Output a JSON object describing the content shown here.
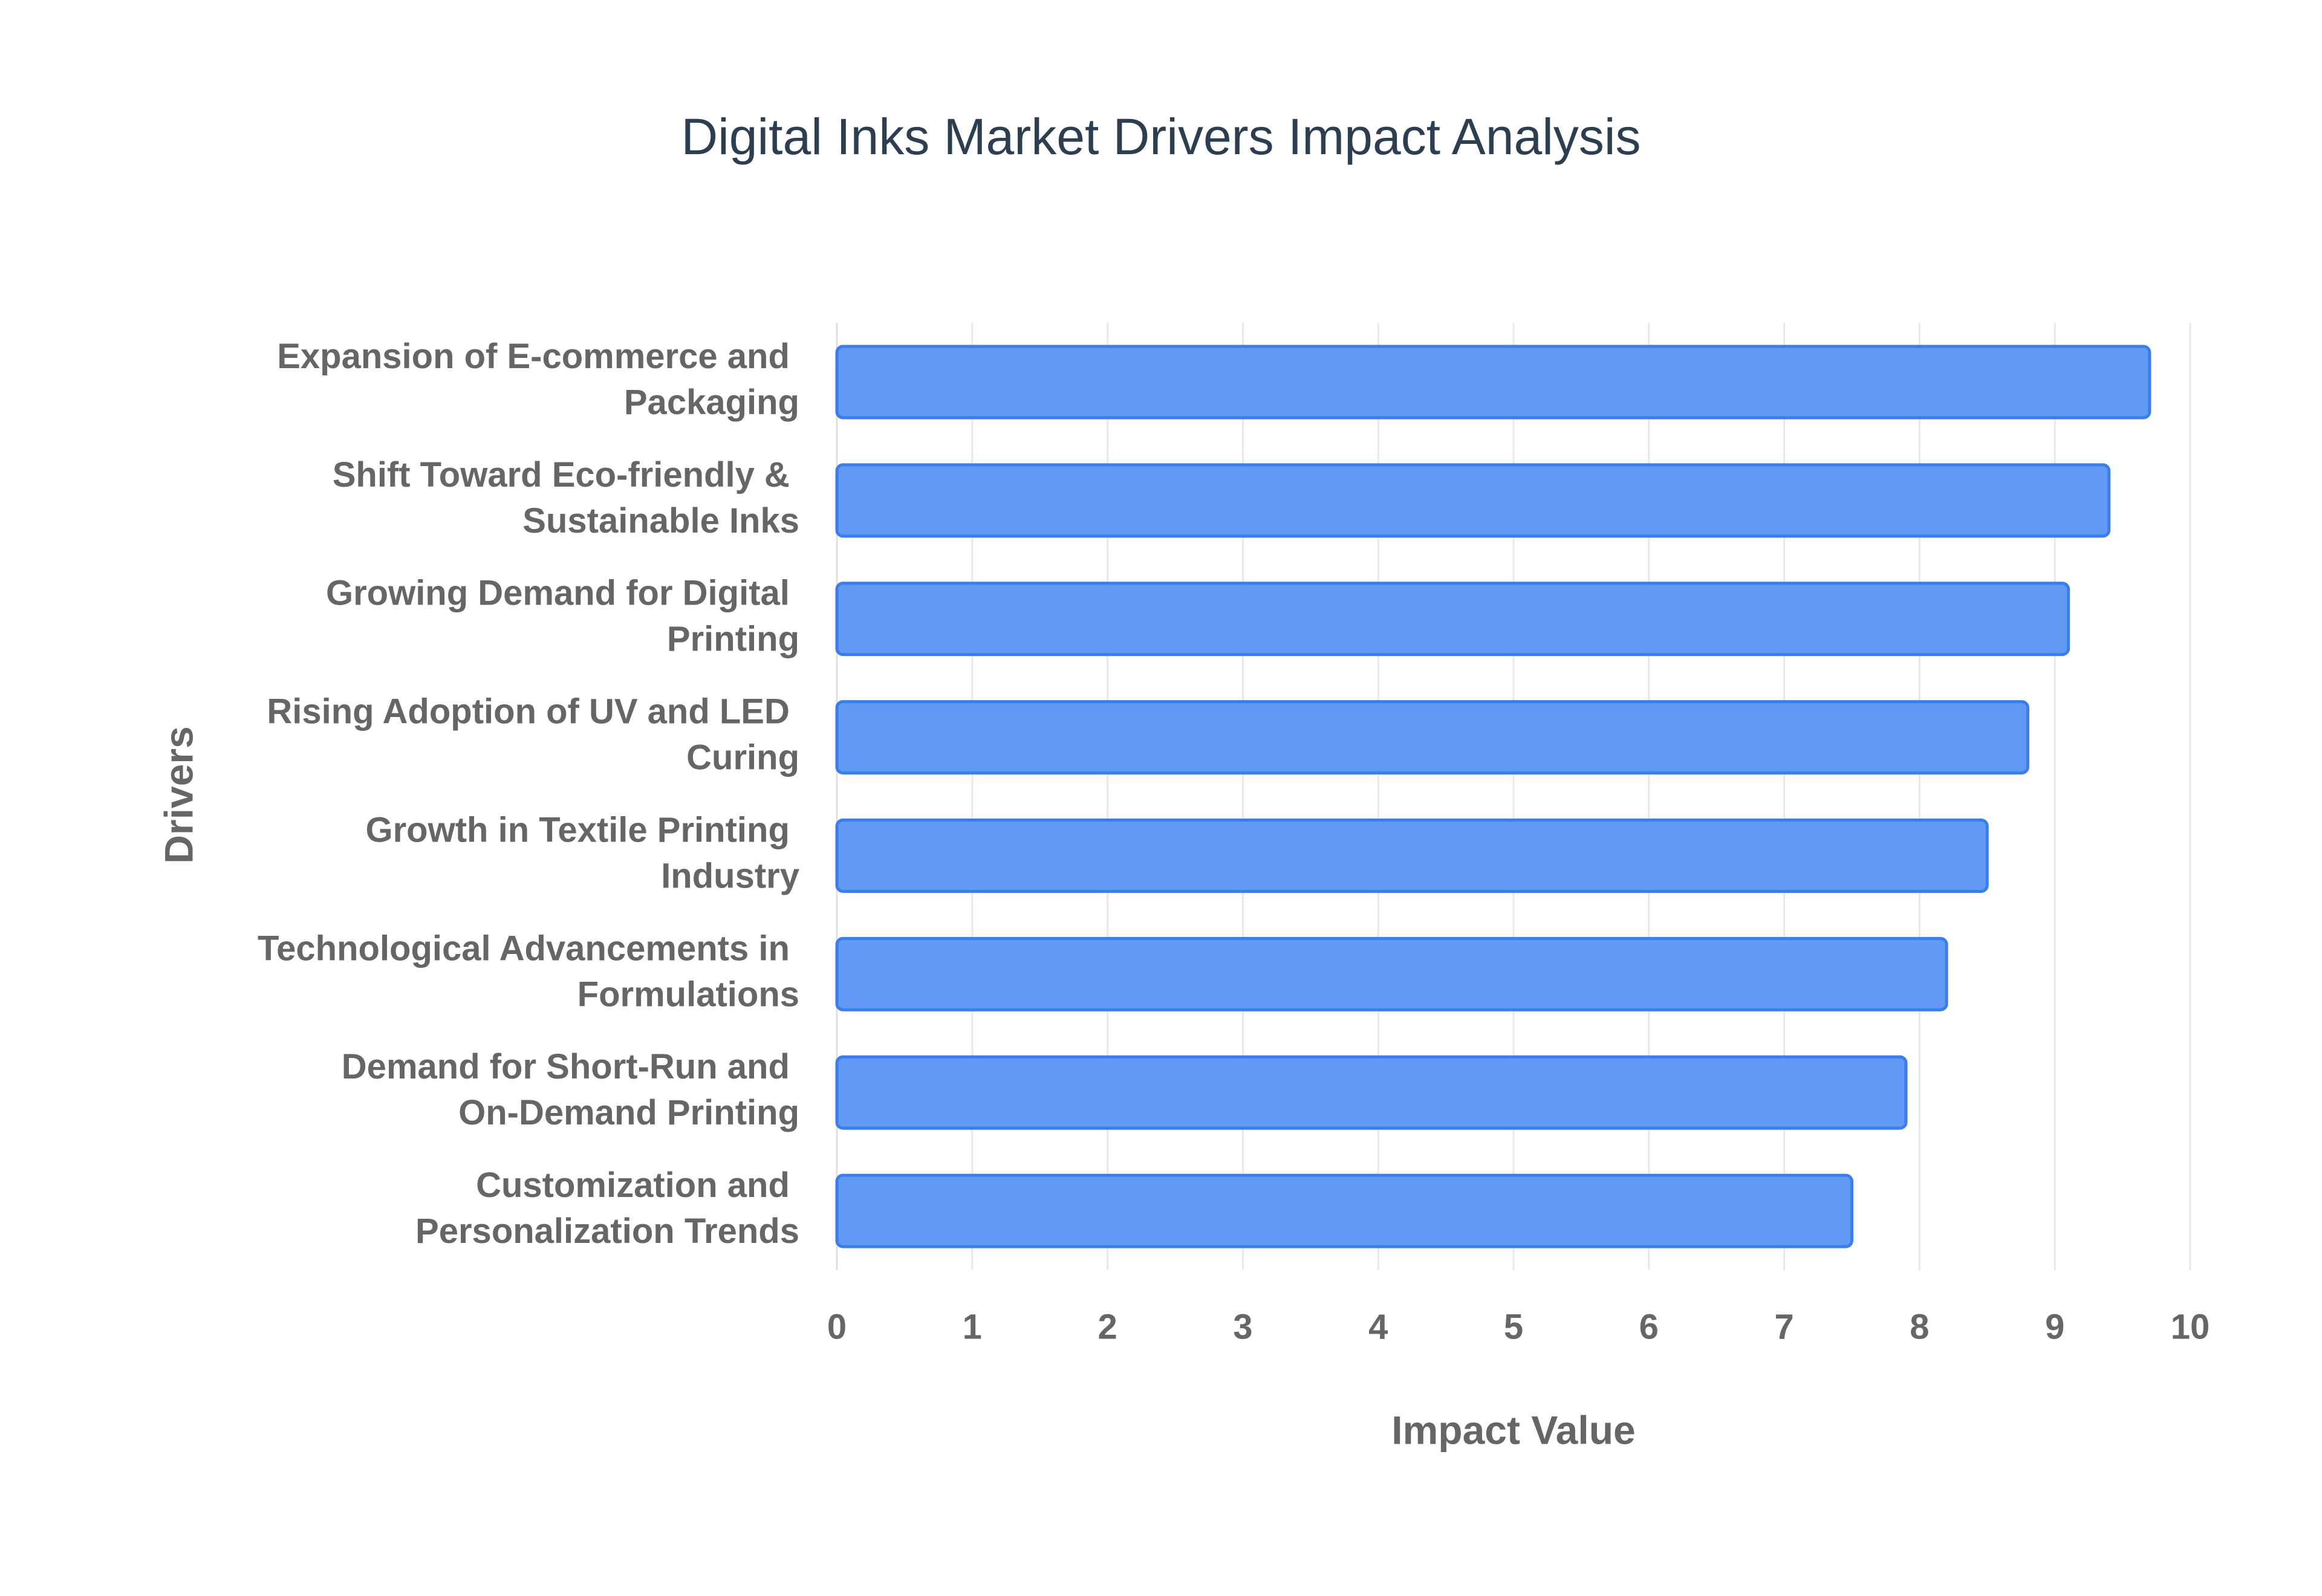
{
  "chart_data": {
    "type": "bar",
    "orientation": "horizontal",
    "title": "Digital Inks Market Drivers Impact Analysis",
    "xlabel": "Impact Value",
    "ylabel": "Drivers",
    "categories": [
      "Expansion of E-commerce and Packaging",
      "Shift Toward Eco-friendly & Sustainable Inks",
      "Growing Demand for Digital Printing",
      "Rising Adoption of UV and LED Curing",
      "Growth in Textile Printing Industry",
      "Technological Advancements in Formulations",
      "Demand for Short-Run and On-Demand Printing",
      "Customization and Personalization Trends"
    ],
    "values": [
      9.7,
      9.4,
      9.1,
      8.8,
      8.5,
      8.2,
      7.9,
      7.5
    ],
    "color": "#6199f4",
    "edge_color": "#3b7de9",
    "xlim": [
      0,
      10
    ],
    "xticks": [
      0,
      1,
      2,
      3,
      4,
      5,
      6,
      7,
      8,
      9,
      10
    ],
    "grid": true
  }
}
